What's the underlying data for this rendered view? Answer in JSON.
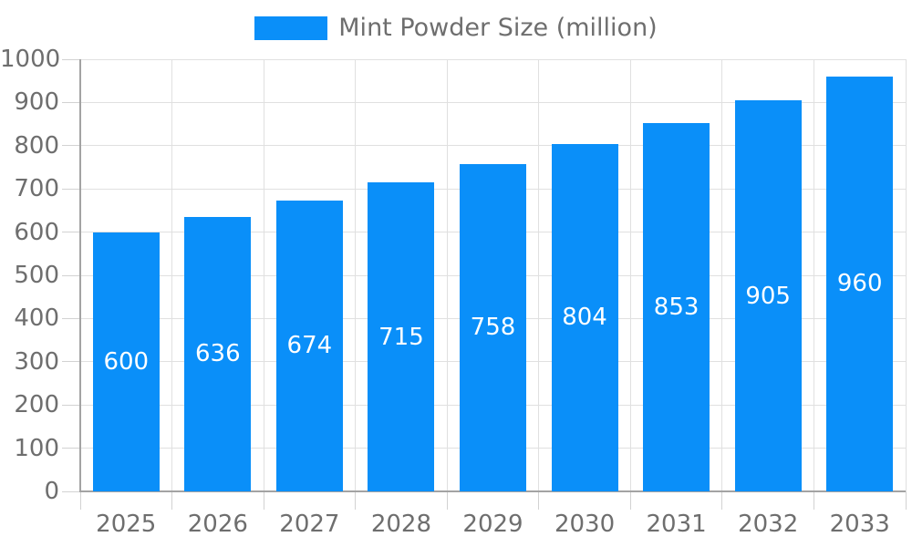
{
  "legend": {
    "label": "Mint Powder Size (million)"
  },
  "colors": {
    "bar": "#0a8ff9",
    "grid": "#e0e0e0",
    "tick": "#d2d2d2",
    "axis": "#a3a3a3",
    "axis_text": "#6e6e6e",
    "value_text": "#ffffff",
    "background": "#ffffff"
  },
  "chart_data": {
    "type": "bar",
    "title": "",
    "categories": [
      "2025",
      "2026",
      "2027",
      "2028",
      "2029",
      "2030",
      "2031",
      "2032",
      "2033"
    ],
    "series": [
      {
        "name": "Mint Powder Size (million)",
        "values": [
          600,
          636,
          674,
          715,
          758,
          804,
          853,
          905,
          960
        ]
      }
    ],
    "xlabel": "",
    "ylabel": "",
    "ylim": [
      0,
      1000
    ],
    "ytick_step": 100,
    "grid": true,
    "legend_position": "top-center",
    "value_label_position": "inside-middle"
  }
}
